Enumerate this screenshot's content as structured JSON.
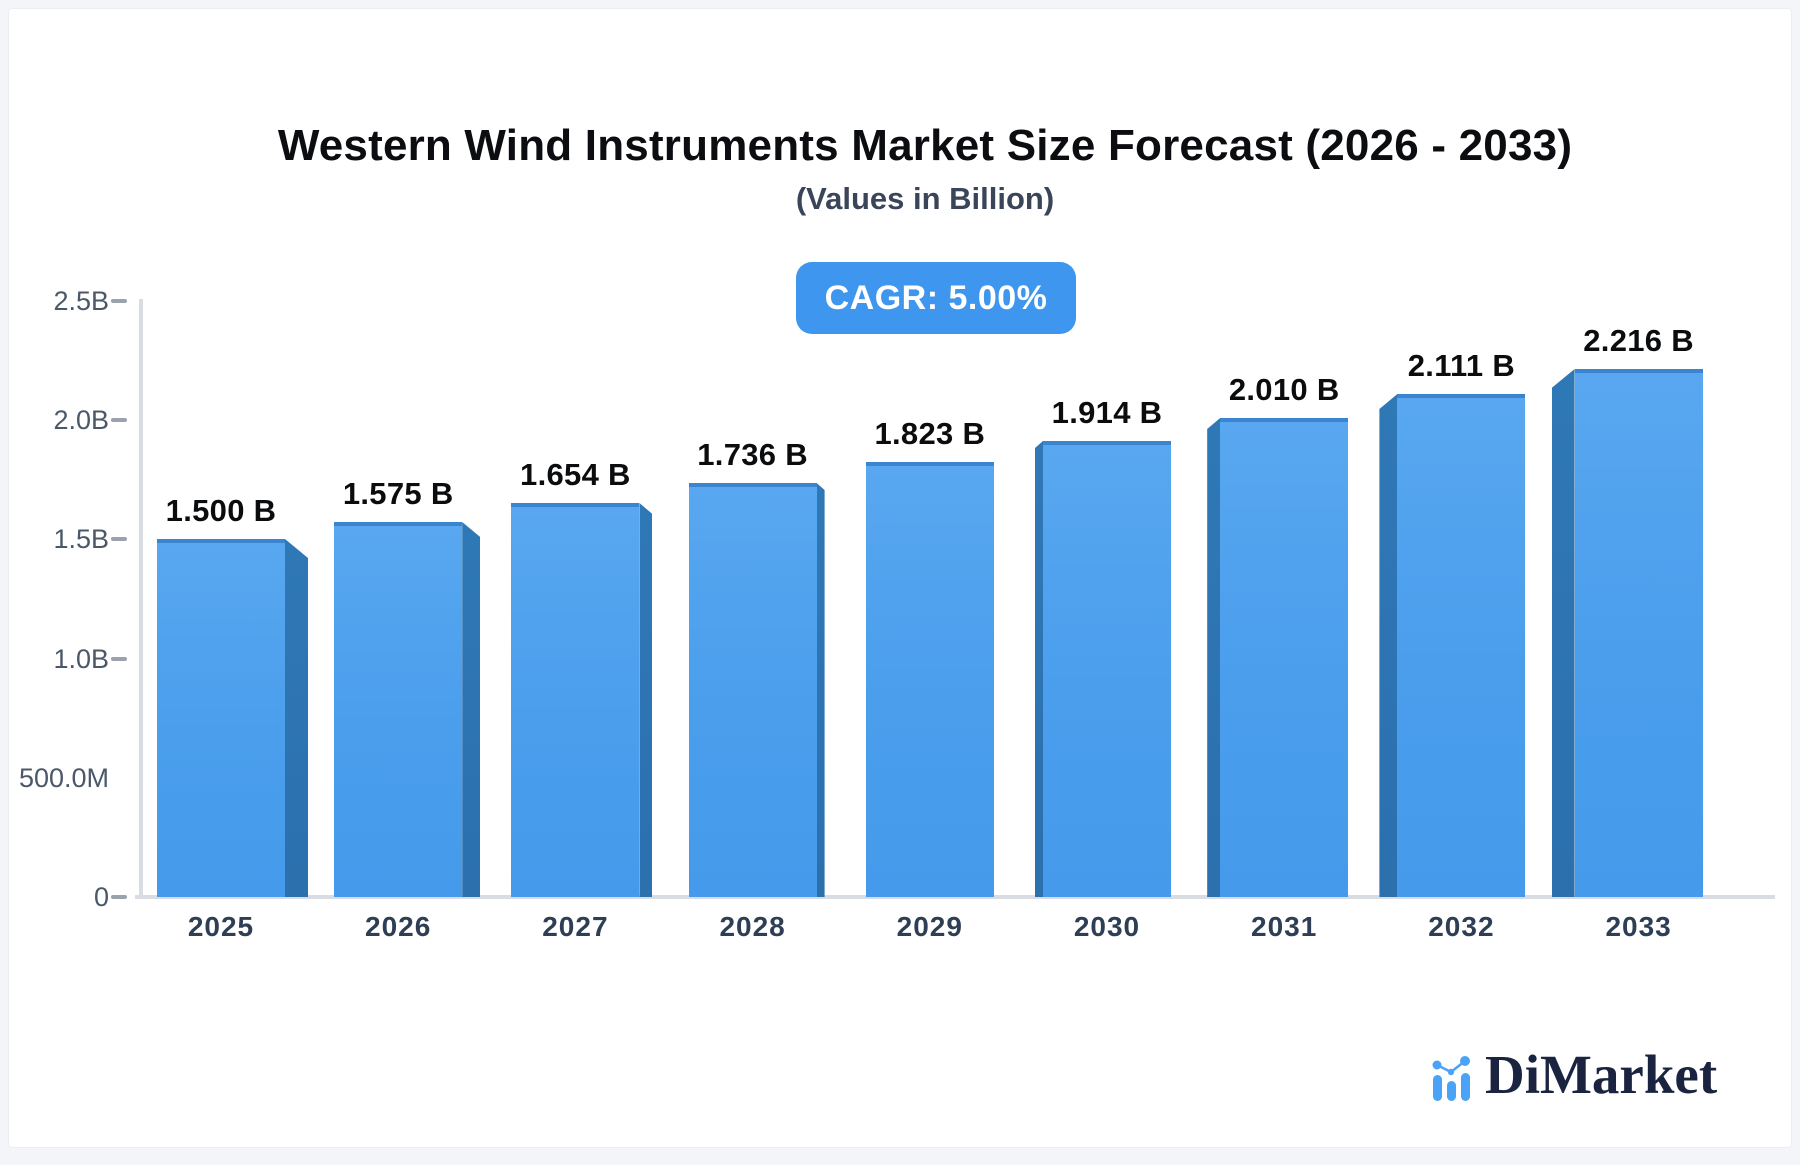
{
  "header": {
    "title": "Western Wind Instruments Market Size Forecast (2026 - 2033)",
    "subtitle": "(Values in Billion)",
    "cagr_badge": "CAGR: 5.00%"
  },
  "chart_data": {
    "type": "bar",
    "title": "Western Wind Instruments Market Size Forecast (2026 - 2033)",
    "subtitle": "(Values in Billion)",
    "cagr": "5.00%",
    "categories": [
      "2025",
      "2026",
      "2027",
      "2028",
      "2029",
      "2030",
      "2031",
      "2032",
      "2033"
    ],
    "values": [
      1.5,
      1.575,
      1.654,
      1.736,
      1.823,
      1.914,
      2.01,
      2.111,
      2.216
    ],
    "value_labels": [
      "1.500 B",
      "1.575 B",
      "1.654 B",
      "1.736 B",
      "1.823 B",
      "1.914 B",
      "2.010 B",
      "2.111 B",
      "2.216 B"
    ],
    "unit_suffix": "B",
    "xlabel": "",
    "ylabel": "",
    "ylim": [
      0,
      2.5
    ],
    "grid": false,
    "legend": "none",
    "y_axis": [
      {
        "value": 0,
        "label": "0",
        "tick_mark": true
      },
      {
        "value": 0.5,
        "label": "500.0M",
        "tick_mark": false
      },
      {
        "value": 1.0,
        "label": "1.0B",
        "tick_mark": true
      },
      {
        "value": 1.5,
        "label": "1.5B",
        "tick_mark": true
      },
      {
        "value": 2.0,
        "label": "2.0B",
        "tick_mark": true
      },
      {
        "value": 2.5,
        "label": "2.5B",
        "tick_mark": true
      }
    ],
    "colors": {
      "bar_face": "#4a9eec",
      "bar_side_3d": "#2d73b1",
      "bar_top_edge": "#3b84cf",
      "axis_line": "#d9dce2",
      "tick_dash": "#9aa2ad",
      "value_label": "#0b0c0e",
      "x_label": "#2d3e55",
      "y_label": "#4b5869",
      "badge_background": "#3e96ee",
      "badge_text": "#ffffff"
    }
  },
  "branding": {
    "logo_text": "DiMarket",
    "logo_icon": "mini-bar-line-chart-icon",
    "logo_icon_color": "#4aa3f6",
    "logo_text_color": "#1a2440"
  }
}
